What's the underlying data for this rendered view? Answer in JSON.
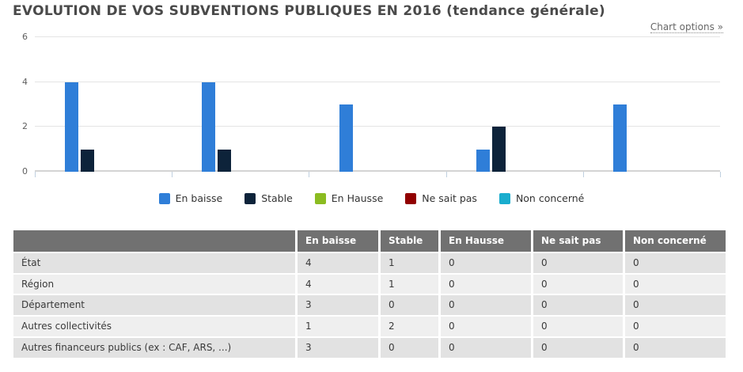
{
  "title": "EVOLUTION DE VOS SUBVENTIONS PUBLIQUES EN 2016 (tendance générale)",
  "chart_options_label": "Chart options »",
  "colors": {
    "en_baisse": "#2f7ed8",
    "stable": "#0d233a",
    "en_hausse": "#8bbc21",
    "ne_sait_pas": "#910000",
    "non_concerne": "#1aadce",
    "table_header_bg": "#717171",
    "row_odd_bg": "#e2e2e2",
    "row_even_bg": "#efefef"
  },
  "chart_data": {
    "type": "bar",
    "title": "EVOLUTION DE VOS SUBVENTIONS PUBLIQUES EN 2016 (tendance générale)",
    "xlabel": "",
    "ylabel": "",
    "ylim": [
      0,
      6
    ],
    "yticks": [
      0,
      2,
      4,
      6
    ],
    "grid": true,
    "legend_position": "bottom",
    "categories": [
      "État",
      "Région",
      "Département",
      "Autres collectivités",
      "Autres financeurs publics (ex : CAF, ARS, ...)"
    ],
    "series": [
      {
        "name": "En baisse",
        "color": "#2f7ed8",
        "values": [
          4,
          4,
          3,
          1,
          3
        ]
      },
      {
        "name": "Stable",
        "color": "#0d233a",
        "values": [
          1,
          1,
          0,
          2,
          0
        ]
      },
      {
        "name": "En Hausse",
        "color": "#8bbc21",
        "values": [
          0,
          0,
          0,
          0,
          0
        ]
      },
      {
        "name": "Ne sait pas",
        "color": "#910000",
        "values": [
          0,
          0,
          0,
          0,
          0
        ]
      },
      {
        "name": "Non concerné",
        "color": "#1aadce",
        "values": [
          0,
          0,
          0,
          0,
          0
        ]
      }
    ]
  },
  "table": {
    "header": [
      "",
      "En baisse",
      "Stable",
      "En Hausse",
      "Ne sait pas",
      "Non concerné"
    ],
    "rows": [
      {
        "label": "État",
        "values": [
          4,
          1,
          0,
          0,
          0
        ]
      },
      {
        "label": "Région",
        "values": [
          4,
          1,
          0,
          0,
          0
        ]
      },
      {
        "label": "Département",
        "values": [
          3,
          0,
          0,
          0,
          0
        ]
      },
      {
        "label": "Autres collectivités",
        "values": [
          1,
          2,
          0,
          0,
          0
        ]
      },
      {
        "label": "Autres financeurs publics (ex : CAF, ARS, ...)",
        "values": [
          3,
          0,
          0,
          0,
          0
        ]
      }
    ]
  }
}
